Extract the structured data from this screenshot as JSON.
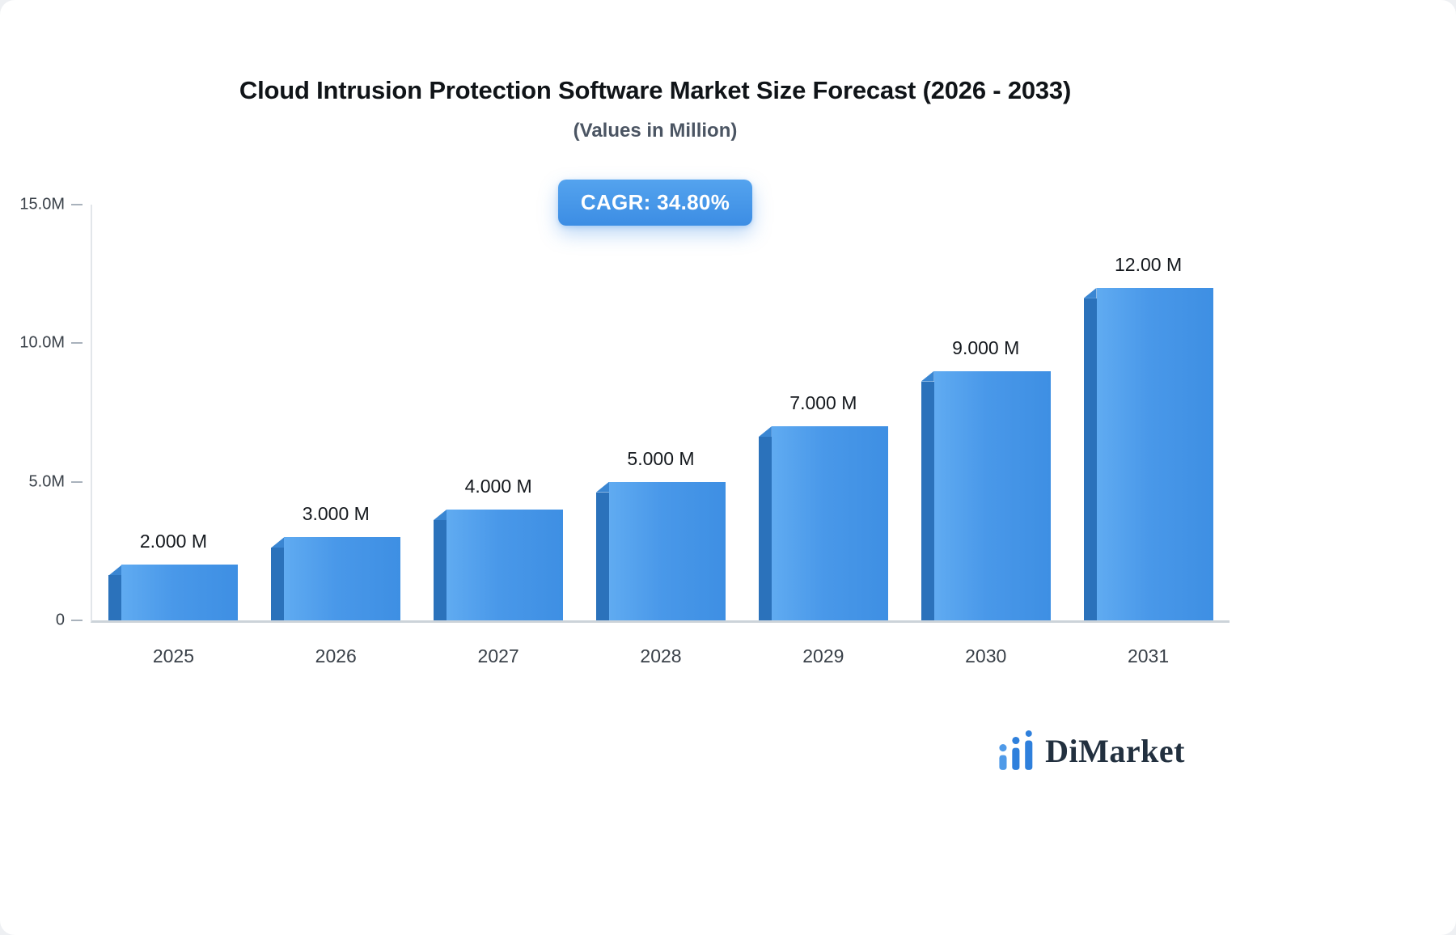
{
  "title": "Cloud Intrusion Protection Software Market Size Forecast (2026 - 2033)",
  "subtitle": "(Values in Million)",
  "cagr_badge": "CAGR: 34.80%",
  "logo": {
    "text": "DiMarket"
  },
  "colors": {
    "bar_face": "#4998e9",
    "bar_face_light": "#60abf1",
    "bar_side": "#2b72bb",
    "badge_bg": "#4397e9",
    "logo_blue": "#2f80dc"
  },
  "chart_data": {
    "type": "bar",
    "title": "Cloud Intrusion Protection Software Market Size Forecast (2026 - 2033)",
    "subtitle": "(Values in Million)",
    "categories": [
      "2025",
      "2026",
      "2027",
      "2028",
      "2029",
      "2030",
      "2031"
    ],
    "values": [
      2,
      3,
      4,
      5,
      7,
      9,
      12
    ],
    "value_labels": [
      "2.000 M",
      "3.000 M",
      "4.000 M",
      "5.000 M",
      "7.000 M",
      "9.000 M",
      "12.00 M"
    ],
    "xlabel": "",
    "ylabel": "",
    "ylim": [
      0,
      15
    ],
    "yticks": [
      {
        "value": 0,
        "label": "0"
      },
      {
        "value": 5,
        "label": "5.0M"
      },
      {
        "value": 10,
        "label": "10.0M"
      },
      {
        "value": 15,
        "label": "15.0M"
      }
    ],
    "grid": false,
    "legend": false,
    "annotations": [
      "CAGR: 34.80%"
    ]
  }
}
